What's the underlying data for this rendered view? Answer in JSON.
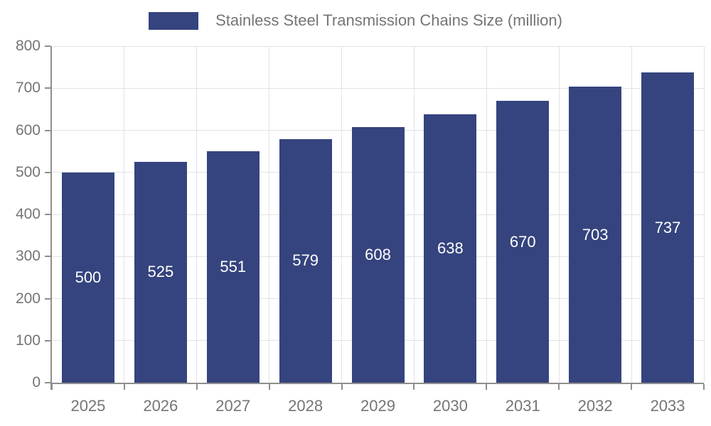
{
  "legend": {
    "label": "Stainless Steel Transmission Chains Size (million)"
  },
  "chart_data": {
    "type": "bar",
    "title": "",
    "categories": [
      "2025",
      "2026",
      "2027",
      "2028",
      "2029",
      "2030",
      "2031",
      "2032",
      "2033"
    ],
    "series": [
      {
        "name": "Stainless Steel Transmission Chains Size (million)",
        "values": [
          500,
          525,
          551,
          579,
          608,
          638,
          670,
          703,
          737
        ]
      }
    ],
    "xlabel": "",
    "ylabel": "",
    "ylim": [
      0,
      800
    ],
    "ytick_step": 100,
    "ytick_labels": [
      "0",
      "100",
      "200",
      "300",
      "400",
      "500",
      "600",
      "700",
      "800"
    ],
    "grid": true,
    "legend_position": "top",
    "bar_labels_inside": true,
    "colors": {
      "bar": "#35447E",
      "bar_label": "#FFFFFF",
      "axis_text": "#757575",
      "axis_line": "#8E8E8E",
      "grid_line": "#E3E3E3",
      "background": "#FFFFFF"
    }
  }
}
